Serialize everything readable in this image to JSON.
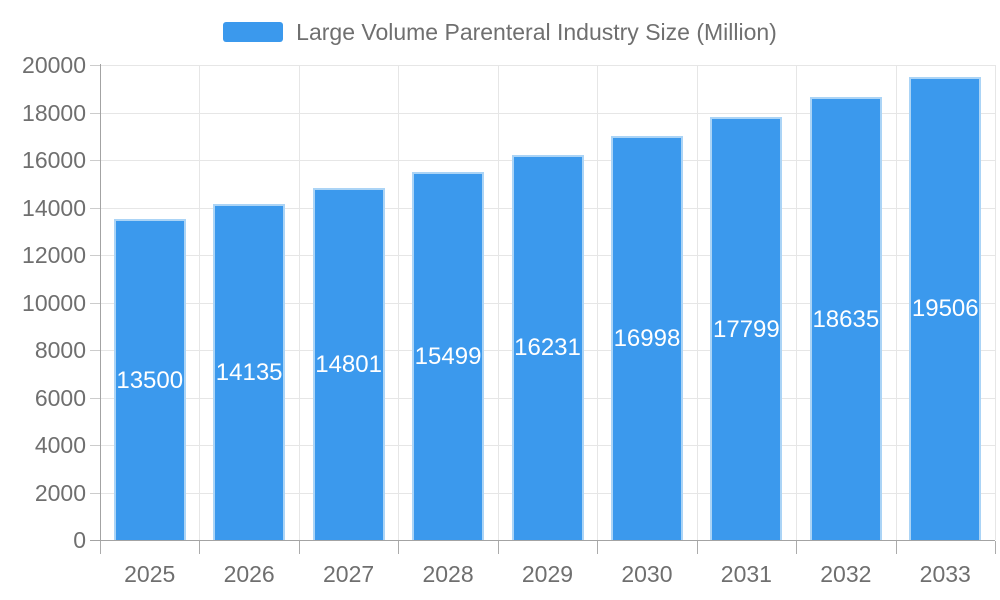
{
  "chart_data": {
    "type": "bar",
    "legend_label": "Large Volume Parenteral Industry Size (Million)",
    "legend_position": "top",
    "categories": [
      "2025",
      "2026",
      "2027",
      "2028",
      "2029",
      "2030",
      "2031",
      "2032",
      "2033"
    ],
    "values": [
      13500,
      14135,
      14801,
      15499,
      16231,
      16998,
      17799,
      18635,
      19506
    ],
    "title": "",
    "xlabel": "",
    "ylabel": "",
    "ylim": [
      0,
      20000
    ],
    "y_ticks": [
      0,
      2000,
      4000,
      6000,
      8000,
      10000,
      12000,
      14000,
      16000,
      18000,
      20000
    ],
    "grid": true,
    "value_labels_inside_bars": true,
    "colors": {
      "bar_fill": "#3b99ed",
      "bar_border": "#abd4f6",
      "bar_value_text": "#ffffff",
      "axis_line": "#a3a3a3",
      "gridline": "#e6e6e6",
      "tick_text": "#6f6f6f"
    }
  }
}
